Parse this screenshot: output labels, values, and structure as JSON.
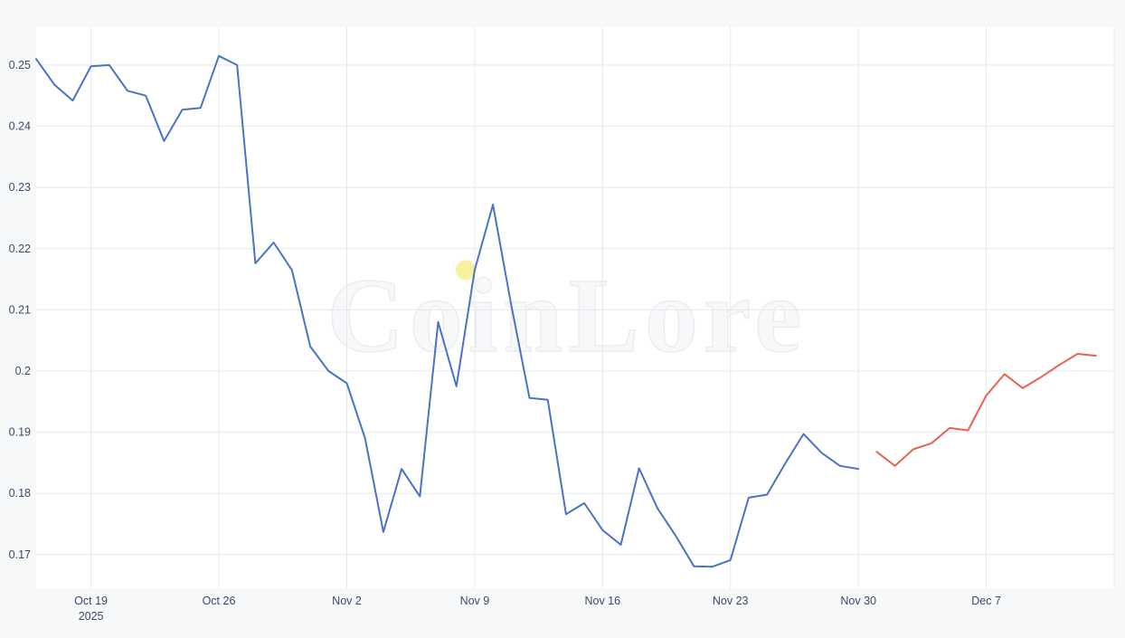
{
  "watermark": {
    "text": "CoinLore"
  },
  "colors": {
    "history_line": "#4a72c8",
    "forecast_line": "#e8634d",
    "marker_fill": "#f6ed8d",
    "grid": "#e6e8ec",
    "axis_text": "#3c4a66",
    "plot_background": "#ffffff",
    "page_background": "#f7f8fa"
  },
  "chart_data": {
    "type": "line",
    "title": "",
    "xlabel": "",
    "ylabel": "",
    "grid": true,
    "legend_position": "none",
    "x_axis": {
      "tick_labels": [
        "Oct 19",
        "Oct 26",
        "Nov 2",
        "Nov 9",
        "Nov 16",
        "Nov 23",
        "Nov 30",
        "Dec 7"
      ],
      "year_label": "2025",
      "year_label_under": "Oct 19",
      "tick_day_offsets": [
        3,
        10,
        17,
        24,
        31,
        38,
        45,
        52
      ],
      "domain_days": [
        0,
        59
      ],
      "start_date": "Oct 16, 2025"
    },
    "y_axis": {
      "tick_labels": [
        "0.25",
        "0.24",
        "0.23",
        "0.22",
        "0.21",
        "0.2",
        "0.19",
        "0.18",
        "0.17"
      ],
      "tick_values": [
        0.25,
        0.24,
        0.23,
        0.22,
        0.21,
        0.2,
        0.19,
        0.18,
        0.17
      ],
      "range": [
        0.1645,
        0.2562
      ]
    },
    "series": [
      {
        "name": "price-history",
        "color_key": "history_line",
        "start_day_offset": 0,
        "dates": [
          "Oct 16",
          "Oct 17",
          "Oct 18",
          "Oct 19",
          "Oct 20",
          "Oct 21",
          "Oct 22",
          "Oct 23",
          "Oct 24",
          "Oct 25",
          "Oct 26",
          "Oct 27",
          "Oct 28",
          "Oct 29",
          "Oct 30",
          "Oct 31",
          "Nov 1",
          "Nov 2",
          "Nov 3",
          "Nov 4",
          "Nov 5",
          "Nov 6",
          "Nov 7",
          "Nov 8",
          "Nov 9",
          "Nov 10",
          "Nov 11",
          "Nov 12",
          "Nov 13",
          "Nov 14",
          "Nov 15",
          "Nov 16",
          "Nov 17",
          "Nov 18",
          "Nov 19",
          "Nov 20",
          "Nov 21",
          "Nov 22",
          "Nov 23",
          "Nov 24",
          "Nov 25",
          "Nov 26",
          "Nov 27",
          "Nov 28",
          "Nov 29",
          "Nov 30"
        ],
        "values": [
          0.251,
          0.2468,
          0.2442,
          0.2498,
          0.25,
          0.2458,
          0.245,
          0.2376,
          0.2427,
          0.243,
          0.2515,
          0.25,
          0.2176,
          0.221,
          0.2165,
          0.204,
          0.2,
          0.198,
          0.189,
          0.1737,
          0.184,
          0.1795,
          0.208,
          0.1975,
          0.2165,
          0.2272,
          0.2108,
          0.1956,
          0.1953,
          0.1766,
          0.1784,
          0.174,
          0.1716,
          0.1841,
          0.1776,
          0.1731,
          0.1681,
          0.168,
          0.1691,
          0.1793,
          0.1798,
          0.1849,
          0.1897,
          0.1866,
          0.1845,
          0.184
        ]
      },
      {
        "name": "price-forecast",
        "color_key": "forecast_line",
        "start_day_offset": 46,
        "dates": [
          "Dec 1",
          "Dec 2",
          "Dec 3",
          "Dec 4",
          "Dec 5",
          "Dec 6",
          "Dec 7",
          "Dec 8",
          "Dec 9",
          "Dec 10",
          "Dec 11",
          "Dec 12",
          "Dec 13"
        ],
        "values": [
          0.1868,
          0.1845,
          0.1872,
          0.1882,
          0.1907,
          0.1903,
          0.196,
          0.1995,
          0.1972,
          0.199,
          0.201,
          0.2028,
          0.2025
        ]
      }
    ],
    "marker_point": {
      "date": "Nov 9",
      "value": 0.2165,
      "day_offset": 23.5
    }
  }
}
